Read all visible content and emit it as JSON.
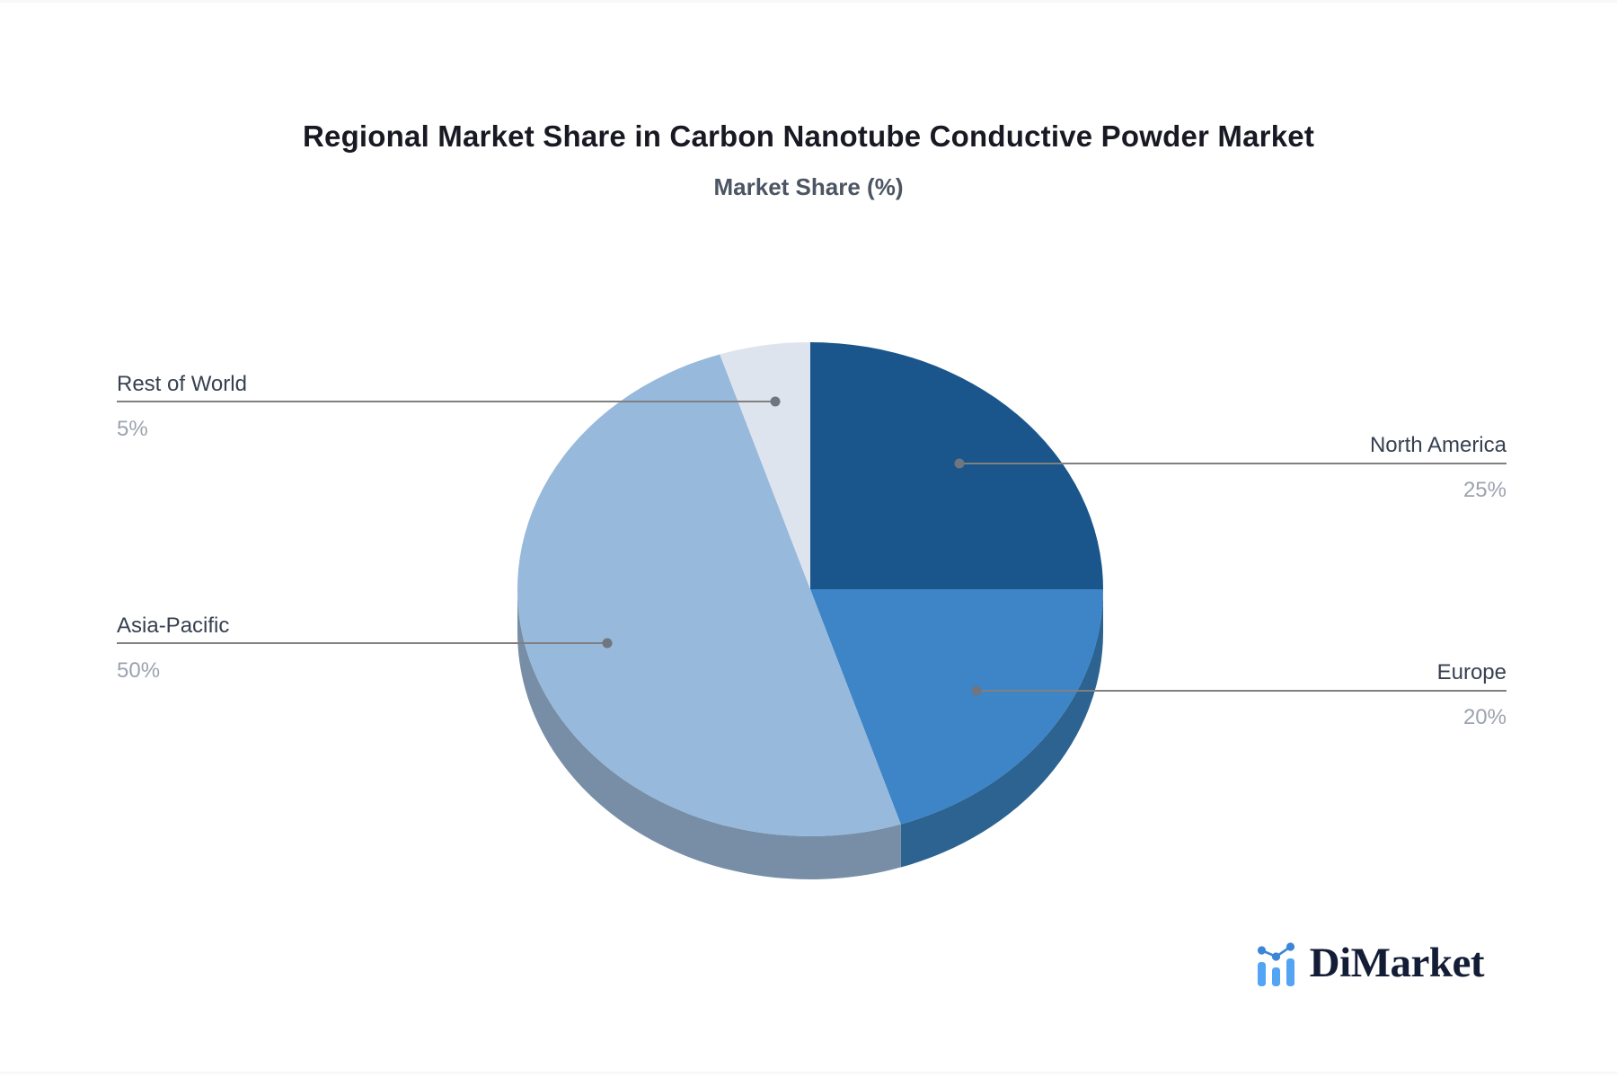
{
  "header": {
    "title": "Regional Market Share in Carbon Nanotube Conductive Powder Market",
    "subtitle": "Market Share (%)"
  },
  "chart_data": {
    "type": "pie",
    "effect": "3d",
    "title": "Regional Market Share in Carbon Nanotube Conductive Powder Market",
    "subtitle": "Market Share (%)",
    "unit": "%",
    "start_angle_deg": -90,
    "direction": "clockwise",
    "labels": [
      "North America",
      "Europe",
      "Asia-Pacific",
      "Rest of World"
    ],
    "values": [
      25,
      20,
      50,
      5
    ],
    "display_values": [
      "25%",
      "20%",
      "50%",
      "5%"
    ],
    "colors": [
      "#1a568c",
      "#3d85c6",
      "#97b9dc",
      "#dee4ee"
    ],
    "side_colors": [
      "#164a77",
      "#2d6391",
      "#778ea6",
      "#b9c5d5"
    ],
    "leader_line_color": "#808080",
    "leader_dot_color": "#6f7680",
    "label_color": "#374151",
    "value_color": "#9ca3af"
  },
  "branding": {
    "logo_text": "DiMarket",
    "logo_icon": "bar-line-chart-icon",
    "logo_bar_color": "#54a4f4",
    "logo_dot_color": "#3c86d8"
  }
}
